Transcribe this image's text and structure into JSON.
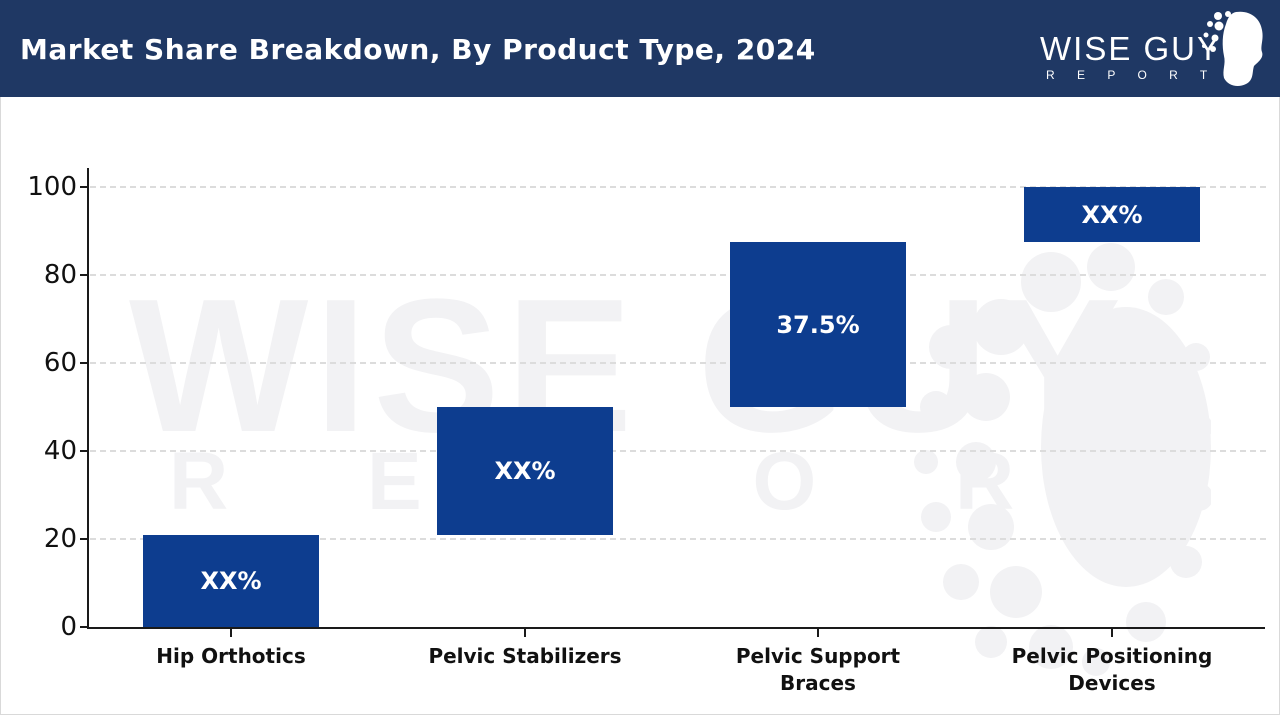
{
  "header": {
    "title": "Market Share Breakdown, By Product Type, 2024",
    "background_color": "#1f3864",
    "logo": {
      "line1": "WISE GUY",
      "line2": "R E P O R T S"
    }
  },
  "watermark": {
    "line1": "WISE GUY",
    "line2": "R E P O R T S"
  },
  "chart_data": {
    "type": "bar",
    "subtype": "floating-segment-waterfall",
    "title": "Market Share Breakdown, By Product Type, 2024",
    "categories": [
      "Hip Orthotics",
      "Pelvic Stabilizers",
      "Pelvic Support Braces",
      "Pelvic Positioning Devices"
    ],
    "bars": [
      {
        "category": "Hip Orthotics",
        "lines": [
          "Hip Orthotics"
        ],
        "start": 0,
        "end": 21,
        "label": "XX%"
      },
      {
        "category": "Pelvic Stabilizers",
        "lines": [
          "Pelvic Stabilizers"
        ],
        "start": 21,
        "end": 50,
        "label": "XX%"
      },
      {
        "category": "Pelvic Support Braces",
        "lines": [
          "Pelvic Support",
          "Braces"
        ],
        "start": 50,
        "end": 87.5,
        "label": "37.5%"
      },
      {
        "category": "Pelvic Positioning Devices",
        "lines": [
          "Pelvic Positioning",
          "Devices"
        ],
        "start": 87.5,
        "end": 100,
        "label": "XX%"
      }
    ],
    "ylim": [
      0,
      100
    ],
    "yticks": [
      0,
      20,
      40,
      60,
      80,
      100
    ],
    "xlabel": "",
    "ylabel": "",
    "grid": "horizontal-dashed",
    "legend": "none",
    "bar_color": "#0d3d8f",
    "bar_label_color": "#ffffff",
    "gridline_color": "#dcdcdc",
    "axis_color": "#1a1a1a"
  }
}
